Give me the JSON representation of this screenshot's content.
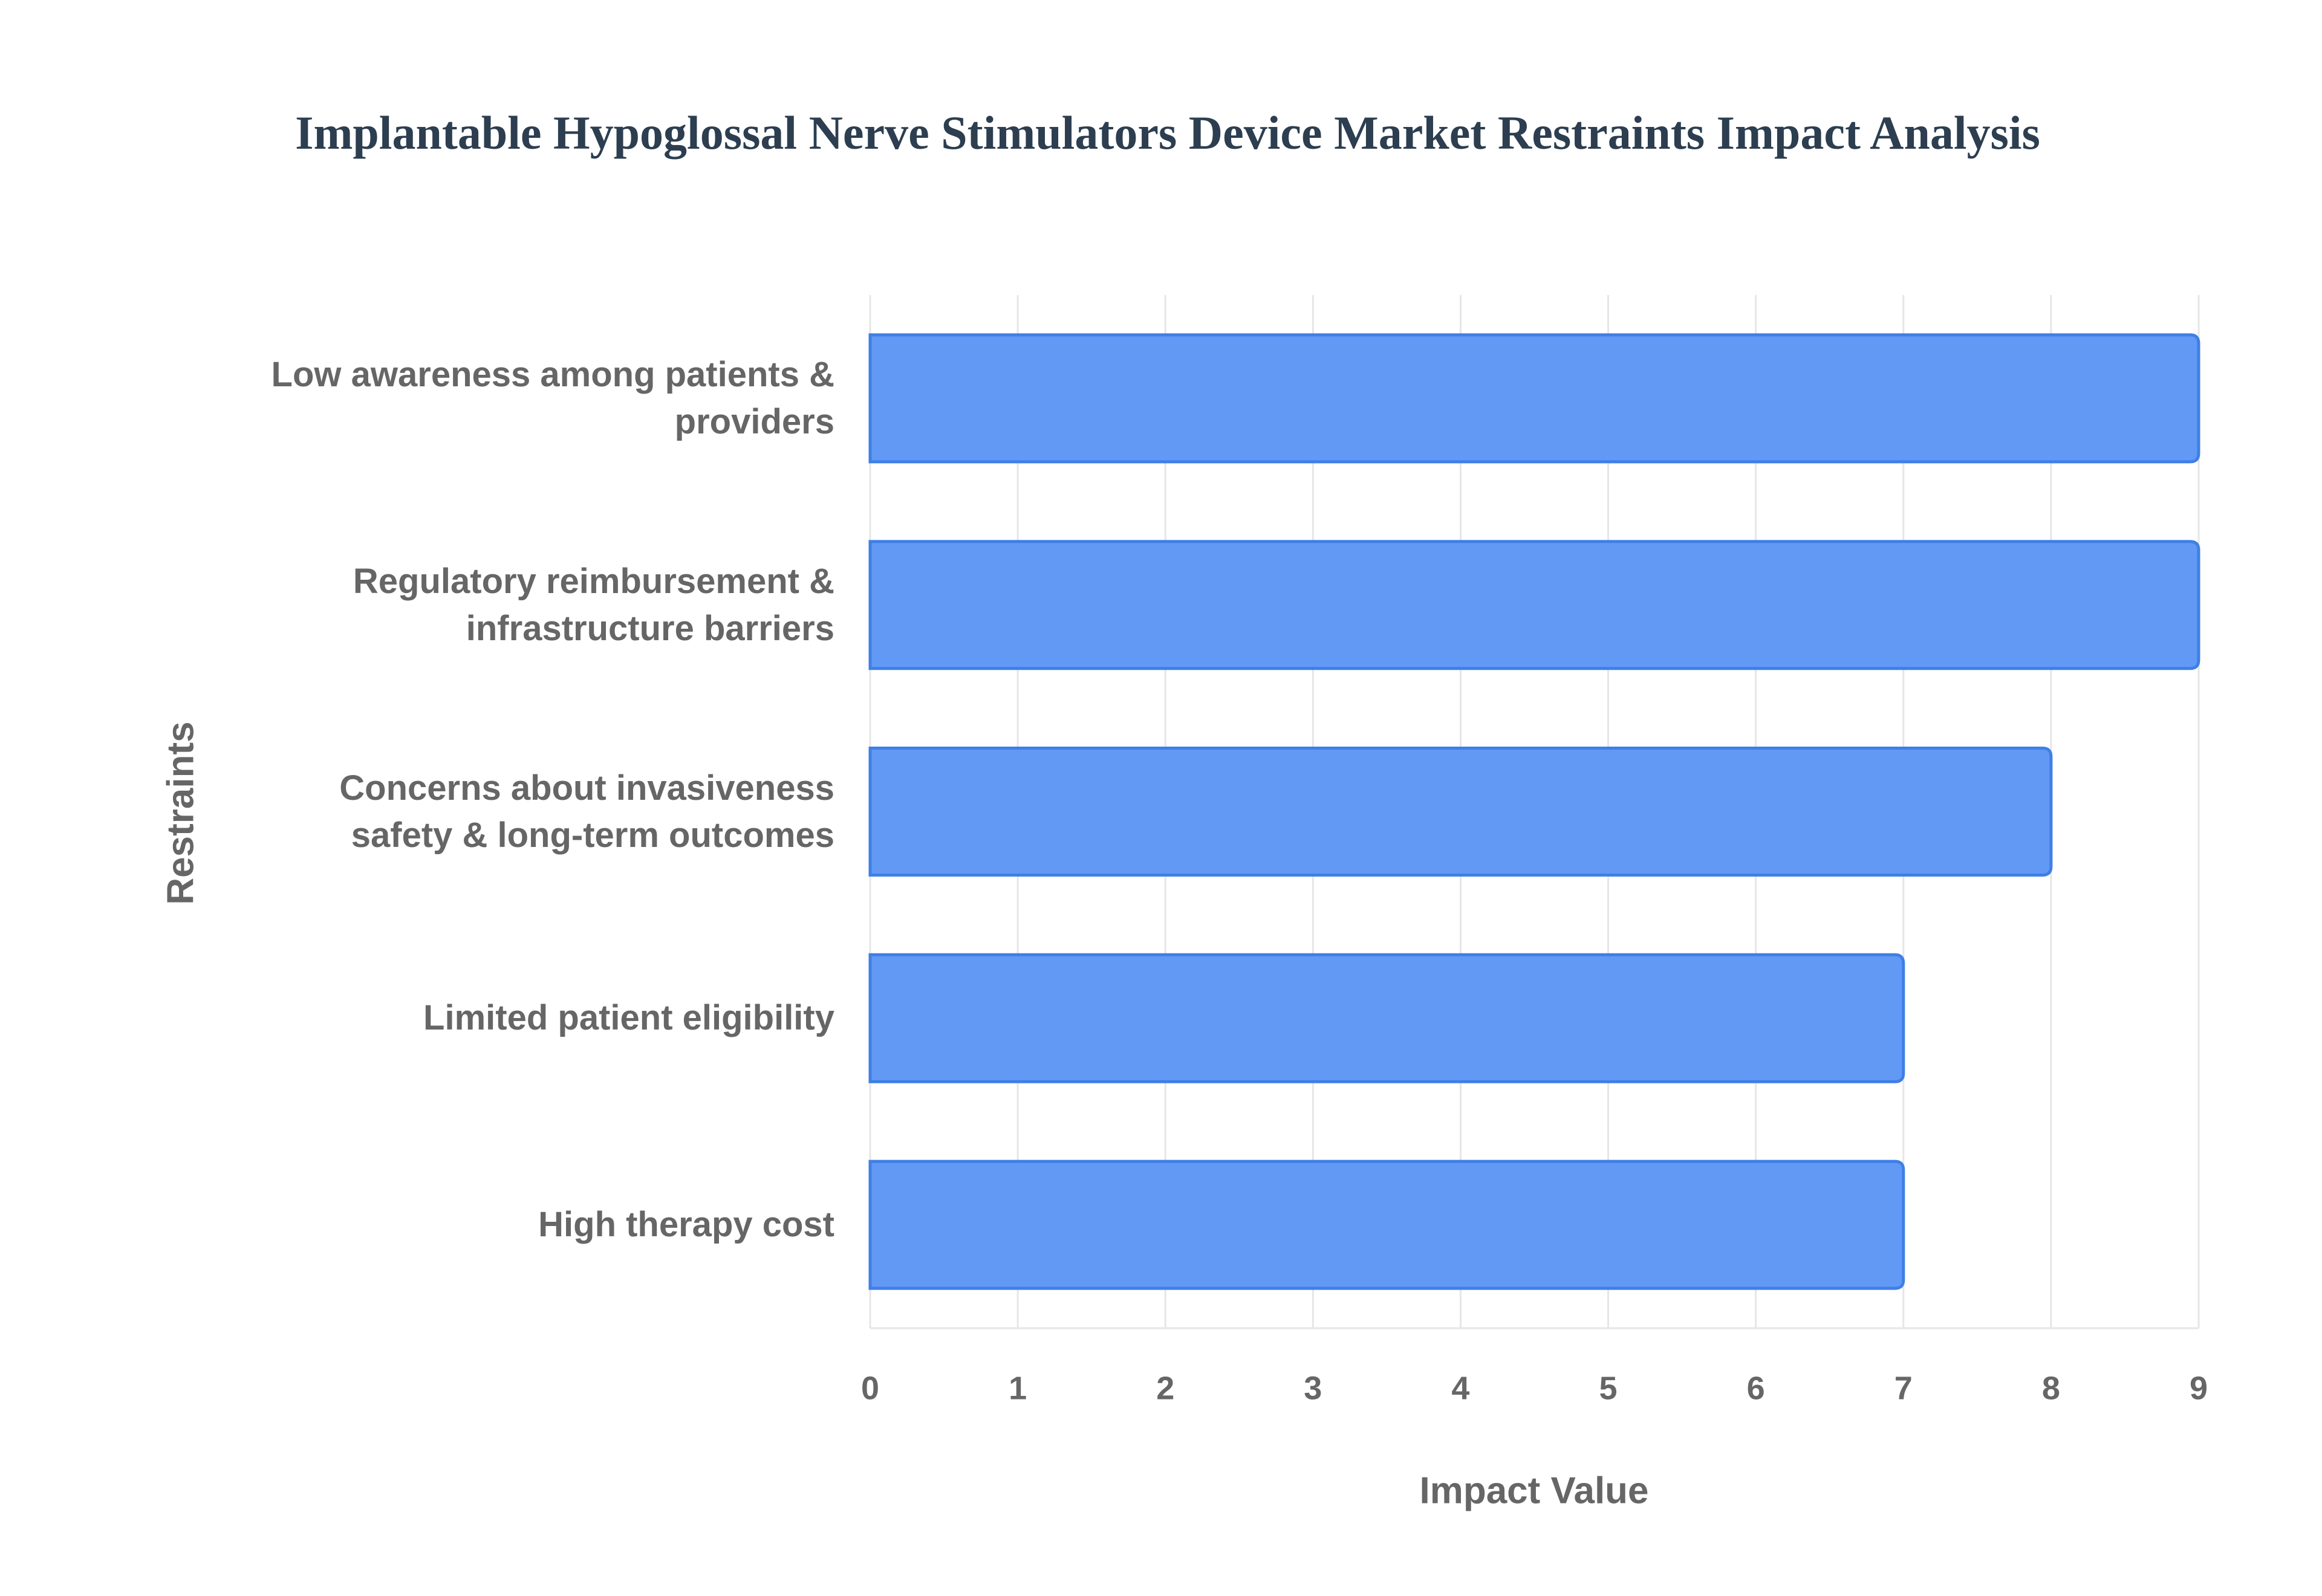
{
  "chart_data": {
    "type": "barh",
    "title": "Implantable Hypoglossal Nerve Stimulators Device Market Restraints Impact Analysis",
    "x_label": "Impact Value",
    "y_label": "Restraints",
    "categories": [
      "Low awareness among patients & providers",
      "Regulatory reimbursement & infrastructure barriers",
      "Concerns about invasiveness safety & long-term outcomes",
      "Limited patient eligibility",
      "High therapy cost"
    ],
    "values": [
      9,
      9,
      8,
      7,
      7
    ],
    "color": "#6199f5",
    "xlim": [
      0,
      9
    ],
    "xticks": [
      0,
      1,
      2,
      3,
      4,
      5,
      6,
      7,
      8,
      9
    ],
    "grid": true
  }
}
